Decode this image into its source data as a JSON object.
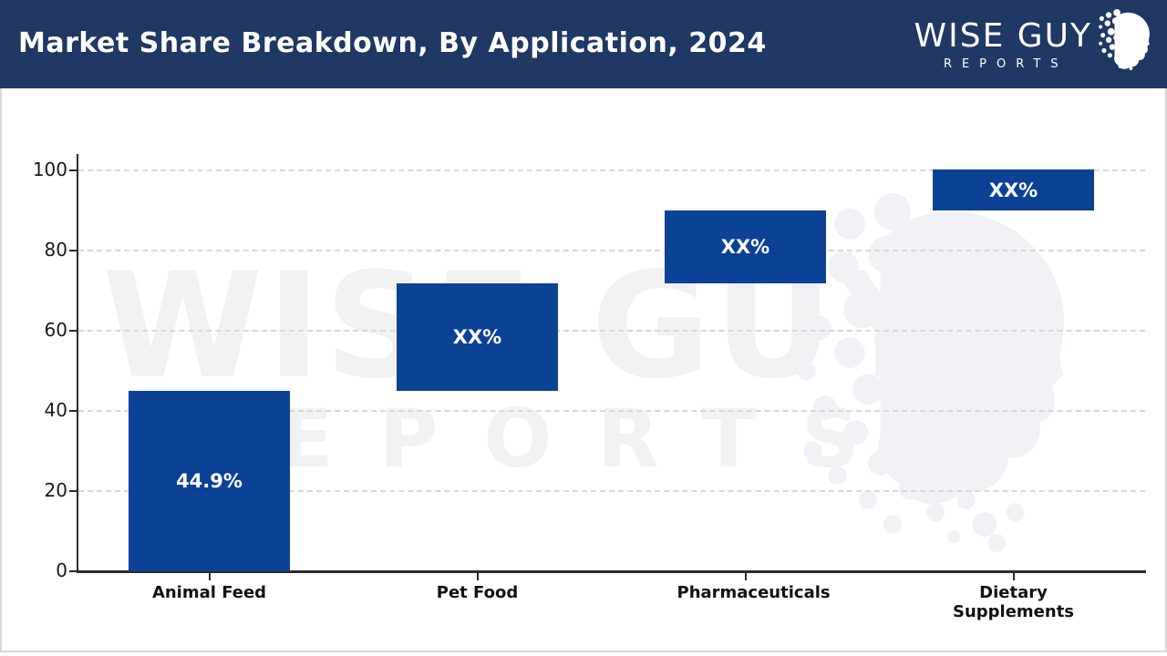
{
  "header": {
    "title": "Market Share Breakdown, By Application, 2024",
    "logo": {
      "line1": "WISE GUY",
      "line2": "REPORTS"
    }
  },
  "watermark": {
    "line1": "WISE GUY",
    "line2": "REPORTS"
  },
  "colors": {
    "header_bg": "#1f3864",
    "bar": "#0b4295",
    "grid": "#d8d8d8",
    "axis": "#2b2b2b",
    "bar_label": "#ffffff",
    "watermark": "#f1f1f4"
  },
  "chart_data": {
    "type": "bar",
    "subtype": "waterfall",
    "title": "Market Share Breakdown, By Application, 2024",
    "categories": [
      "Animal Feed",
      "Pet Food",
      "Pharmaceuticals",
      "Dietary Supplements"
    ],
    "bars": [
      {
        "category": "Animal Feed",
        "start": 0,
        "end": 44.9,
        "label": "44.9%"
      },
      {
        "category": "Pet Food",
        "start": 44.9,
        "end": 71.9,
        "label": "XX%"
      },
      {
        "category": "Pharmaceuticals",
        "start": 71.9,
        "end": 90.0,
        "label": "XX%"
      },
      {
        "category": "Dietary Supplements",
        "start": 90.0,
        "end": 100.2,
        "label": "XX%"
      }
    ],
    "xlabel": "",
    "ylabel": "",
    "yticks": [
      0,
      20,
      40,
      60,
      80,
      100
    ],
    "ylim": [
      0,
      104
    ],
    "grid": "horizontal-dashed",
    "legend": "none",
    "bar_color": "#0b4295",
    "value_label_color": "#ffffff"
  }
}
